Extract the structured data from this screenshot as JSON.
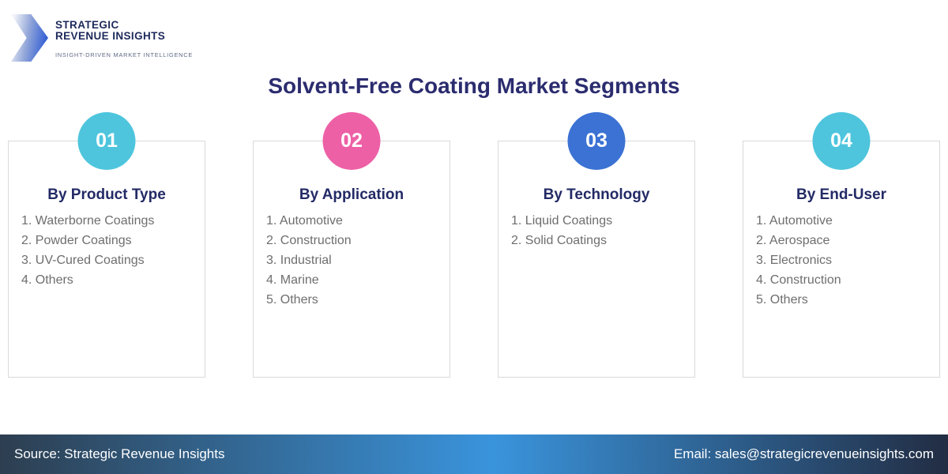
{
  "logo": {
    "line1": "STRATEGIC",
    "line2": "REVENUE INSIGHTS",
    "tagline": "INSIGHT-DRIVEN MARKET INTELLIGENCE",
    "icon": "right-chevron-icon",
    "text_color": "#1e2a5c",
    "icon_blue": "#2b59d4"
  },
  "title": {
    "text": "Solvent-Free Coating Market Segments",
    "color": "#2b2c6f"
  },
  "cards": [
    {
      "badge": "01",
      "badge_color": "#4ec5dd",
      "heading": "By Product Type",
      "items": [
        "1. Waterborne Coatings",
        "2. Powder Coatings",
        "3. UV-Cured Coatings",
        "4. Others"
      ]
    },
    {
      "badge": "02",
      "badge_color": "#ed60a6",
      "heading": "By Application",
      "items": [
        "1. Automotive",
        "2. Construction",
        "3. Industrial",
        "4. Marine",
        "5. Others"
      ]
    },
    {
      "badge": "03",
      "badge_color": "#3b72d3",
      "heading": "By Technology",
      "items": [
        "1. Liquid Coatings",
        "2. Solid Coatings"
      ]
    },
    {
      "badge": "04",
      "badge_color": "#4ec5dd",
      "heading": "By End-User",
      "items": [
        "1. Automotive",
        "2. Aerospace",
        "3. Electronics",
        "4. Construction",
        "5. Others"
      ]
    }
  ],
  "footer": {
    "source": "Source: Strategic Revenue Insights",
    "email": "Email: sales@strategicrevenueinsights.com",
    "gradient": [
      "#2d3e50",
      "#3a94dc",
      "#222d43"
    ],
    "heading_color": "#232a66",
    "list_color": "#6e6e6e",
    "card_border_color": "#d9d9d9"
  }
}
